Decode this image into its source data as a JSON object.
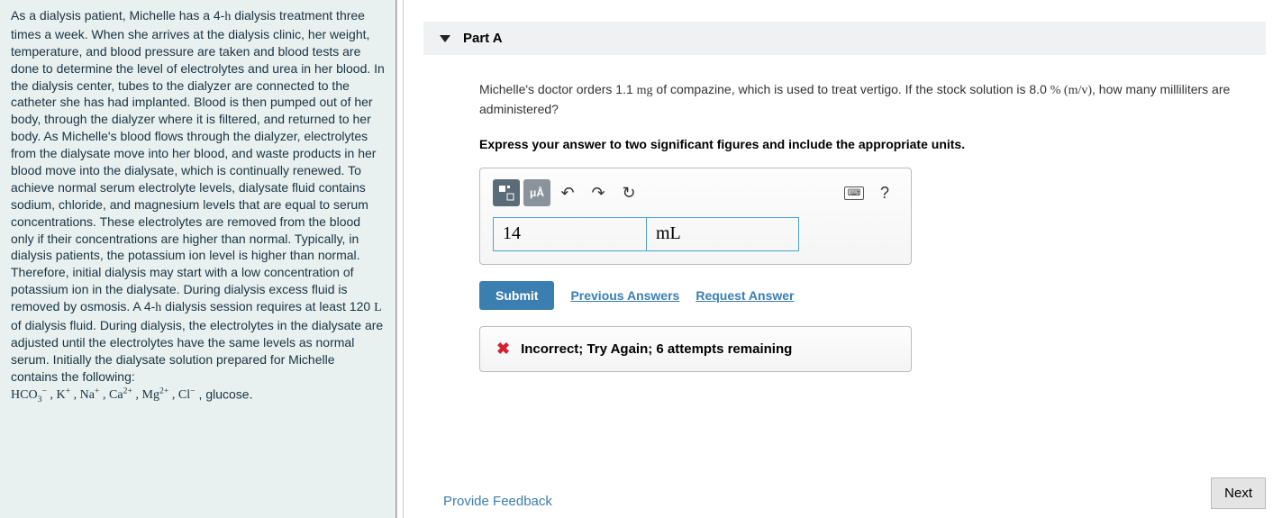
{
  "left": {
    "passage_html": "As a dialysis patient, Michelle has a 4-<span class='serif'>h</span> dialysis treatment three times a week. When she arrives at the dialysis clinic, her weight, temperature, and blood pressure are taken and blood tests are done to determine the level of electrolytes and urea in her blood. In the dialysis center, tubes to the dialyzer are connected to the catheter she has had implanted. Blood is then pumped out of her body, through the dialyzer where it is filtered, and returned to her body. As Michelle's blood flows through the dialyzer, electrolytes from the dialysate move into her blood, and waste products in her blood move into the dialysate, which is continually renewed. To achieve normal serum electrolyte levels, dialysate fluid contains sodium, chloride, and magnesium levels that are equal to serum concentrations. These electrolytes are removed from the blood only if their concentrations are higher than normal. Typically, in dialysis patients, the potassium ion level is higher than normal. Therefore, initial dialysis may start with a low concentration of potassium ion in the dialysate. During dialysis excess fluid is removed by osmosis. A 4-<span class='serif'>h</span> dialysis session requires at least 120 <span class='serif'>L</span> of dialysis fluid. During dialysis, the electrolytes in the dialysate are adjusted until the electrolytes have the same levels as normal serum. Initially the dialysate solution prepared for Michelle contains the following:<br><span class='serif'>HCO<sub>3</sub><sup>−</sup> , K<sup>+</sup> , Na<sup>+</sup> , Ca<sup>2+</sup> , Mg<sup>2+</sup> , Cl<sup>−</sup></span> , glucose."
  },
  "part": {
    "title": "Part A",
    "question_html": "Michelle's doctor orders 1.1 <span class='serif'>mg</span> of compazine, which is used to treat vertigo. If the stock solution is 8.0 <span class='serif'>% (m/v)</span>, how many milliliters are administered?",
    "instruction": "Express your answer to two significant figures and include the appropriate units.",
    "toolbar": {
      "templates_icon": "▫",
      "units_label": "μÅ",
      "undo": "↶",
      "redo": "↷",
      "reset": "↻",
      "keyboard": "⌨",
      "help": "?"
    },
    "answer_value": "14",
    "answer_unit": "mL",
    "buttons": {
      "submit": "Submit",
      "prev": "Previous Answers",
      "request": "Request Answer"
    },
    "feedback": {
      "icon": "✖",
      "text": "Incorrect; Try Again; 6 attempts remaining"
    }
  },
  "footer": {
    "provide_feedback": "Provide Feedback",
    "next": "Next"
  },
  "colors": {
    "left_bg": "#e8f0f0",
    "link": "#3b7eb0",
    "error": "#d5212e"
  }
}
